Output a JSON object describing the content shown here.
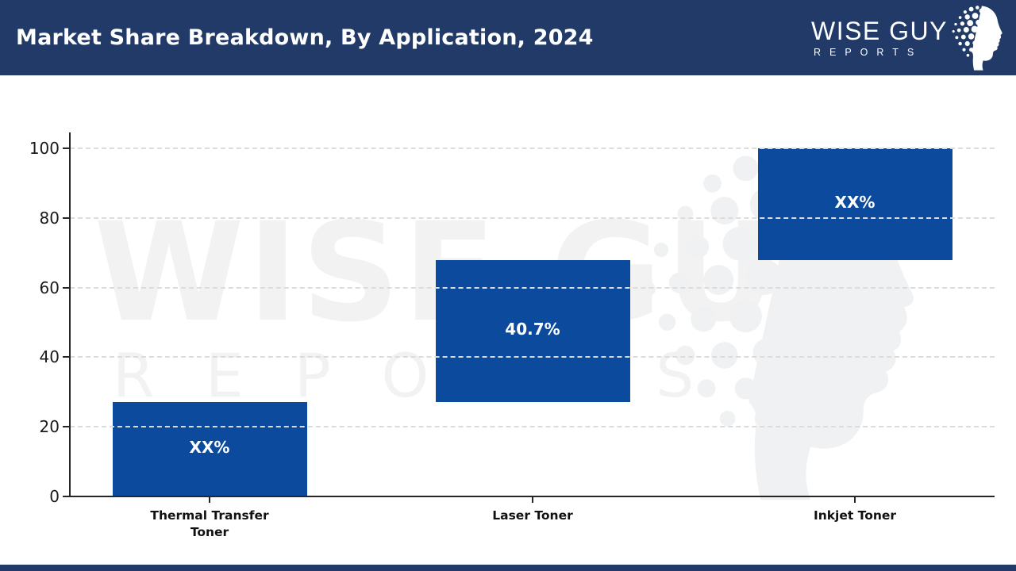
{
  "header": {
    "title": "Market Share Breakdown, By Application, 2024",
    "brand": {
      "name": "WISE GUY",
      "subname": "REPORTS"
    }
  },
  "watermark": {
    "line1": "WISE GUY",
    "line2": "REPORTS"
  },
  "colors": {
    "header_bg": "#213a68",
    "bar": "#0c4a9e",
    "gridline": "#dcdcdc",
    "axis": "#262626",
    "bar_label_text": "#ffffff",
    "watermark": "#f2f2f2"
  },
  "chart_data": {
    "type": "bar",
    "subtype": "floating-breakdown",
    "title": "Market Share Breakdown, By Application, 2024",
    "categories": [
      "Thermal Transfer Toner",
      "Laser Toner",
      "Inkjet Toner"
    ],
    "bars": [
      {
        "category": "Thermal Transfer Toner",
        "start": 0,
        "end": 27.2,
        "label": "XX%"
      },
      {
        "category": "Laser Toner",
        "start": 27.2,
        "end": 67.9,
        "label": "40.7%"
      },
      {
        "category": "Inkjet Toner",
        "start": 67.9,
        "end": 100,
        "label": "XX%"
      }
    ],
    "xlabel": "",
    "ylabel": "",
    "yticks": [
      0,
      20,
      40,
      60,
      80,
      100
    ],
    "ylim": [
      0,
      104.5
    ],
    "grid": "horizontal-dashed-above-bars",
    "legend": "none",
    "bar_color": "#0c4a9e"
  }
}
